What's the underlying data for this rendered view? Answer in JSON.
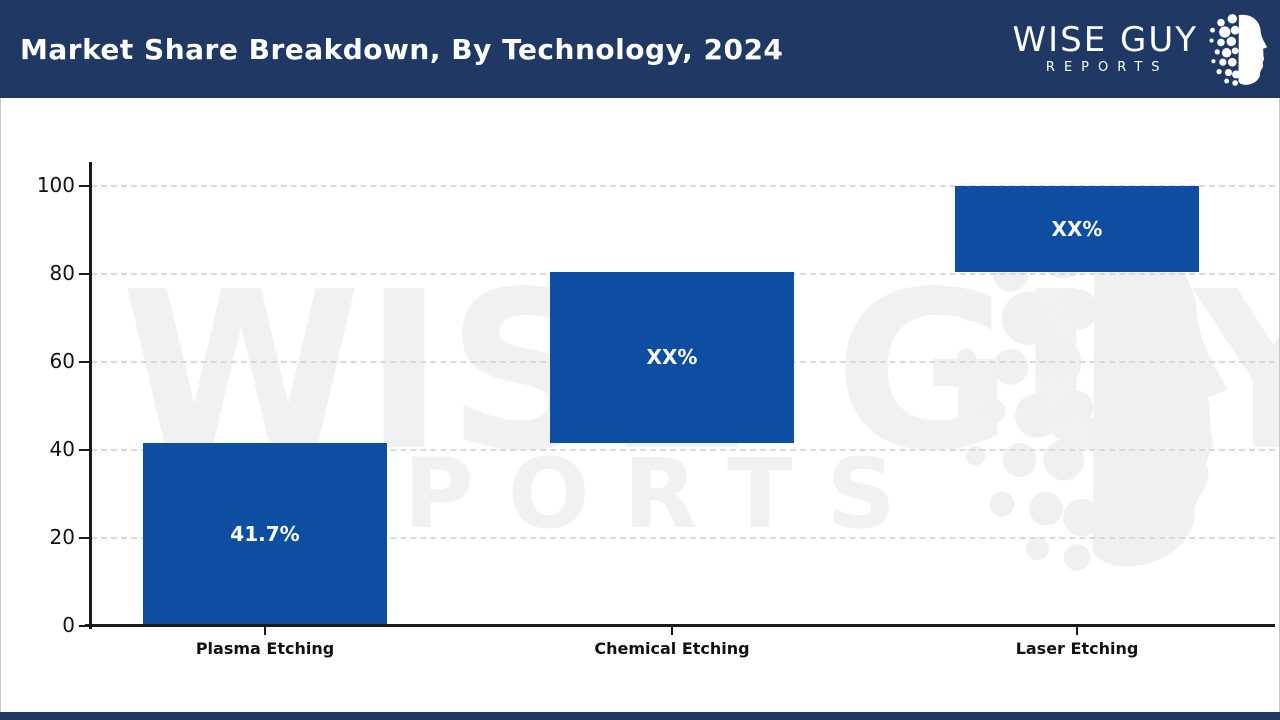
{
  "header": {
    "title": "Market Share Breakdown, By Technology, 2024",
    "logo": {
      "line1": "WISE GUY",
      "line2": "REPORTS"
    }
  },
  "watermark": {
    "line1": "WISE GUY",
    "line2": "REPORTS"
  },
  "colors": {
    "header_bg": "#1f3864",
    "bar_blue": "#0d4da2",
    "axis_dark": "#1a1a1a",
    "grid_gray": "#d9d9d9",
    "watermark_gray": "#f1f1f3"
  },
  "chart_data": {
    "type": "bar",
    "subtype": "waterfall-floating-bars",
    "title": "Market Share Breakdown, By Technology, 2024",
    "categories": [
      "Plasma Etching",
      "Chemical Etching",
      "Laser Etching"
    ],
    "segments": [
      {
        "category": "Plasma Etching",
        "start": 0,
        "end": 41.7,
        "label": "41.7%"
      },
      {
        "category": "Chemical Etching",
        "start": 41.7,
        "end": 80.4,
        "label": "XX%"
      },
      {
        "category": "Laser Etching",
        "start": 80.4,
        "end": 100,
        "label": "XX%"
      }
    ],
    "xlabel": "",
    "ylabel": "",
    "ylim": [
      0,
      100
    ],
    "yticks": [
      0,
      20,
      40,
      60,
      80,
      100
    ],
    "grid": "horizontal-dashed",
    "legend": "none",
    "bar_label_color": "#ffffff"
  }
}
